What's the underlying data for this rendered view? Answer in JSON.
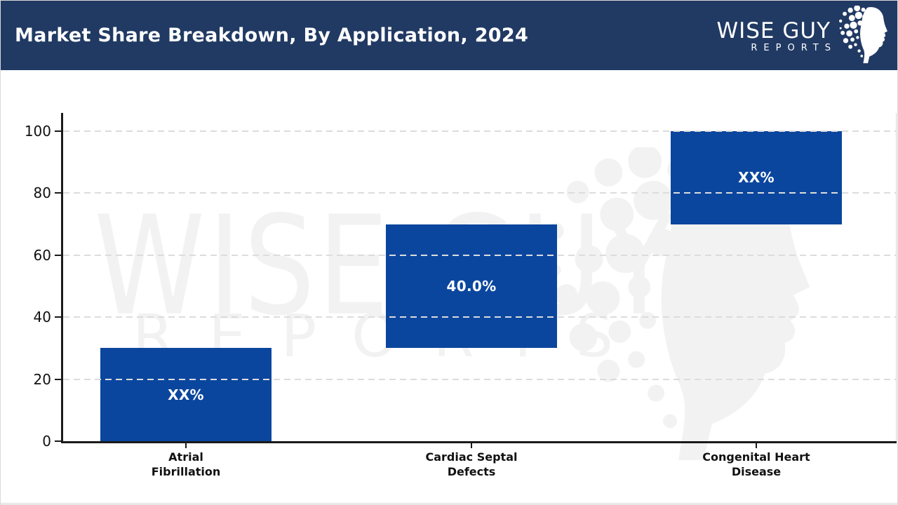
{
  "header": {
    "title": "Market Share Breakdown, By Application, 2024",
    "bg_color": "#213a63",
    "logo": {
      "line1": "WISE GUY",
      "line2": "REPORTS"
    }
  },
  "watermark": {
    "line1": "WISE GUY",
    "line2": "REPORTS"
  },
  "chart_data": {
    "type": "bar",
    "subtype": "floating-waterfall",
    "title": "Market Share Breakdown, By Application, 2024",
    "categories": [
      [
        "Atrial",
        "Fibrillation"
      ],
      [
        "Cardiac Septal",
        "Defects"
      ],
      [
        "Congenital Heart",
        "Disease"
      ]
    ],
    "segments": [
      {
        "category": "Atrial Fibrillation",
        "start": 0,
        "end": 30,
        "label": "XX%"
      },
      {
        "category": "Cardiac Septal Defects",
        "start": 30,
        "end": 70,
        "label": "40.0%"
      },
      {
        "category": "Congenital Heart Disease",
        "start": 70,
        "end": 100,
        "label": "XX%"
      }
    ],
    "y_ticks": [
      0,
      20,
      40,
      60,
      80,
      100
    ],
    "ylim": [
      0,
      100
    ],
    "xlabel": "",
    "ylabel": "",
    "grid": "dashed horizontal, drawn over bars",
    "legend": "none",
    "bar_color": "#0b469e",
    "bar_label_color": "#ffffff"
  }
}
